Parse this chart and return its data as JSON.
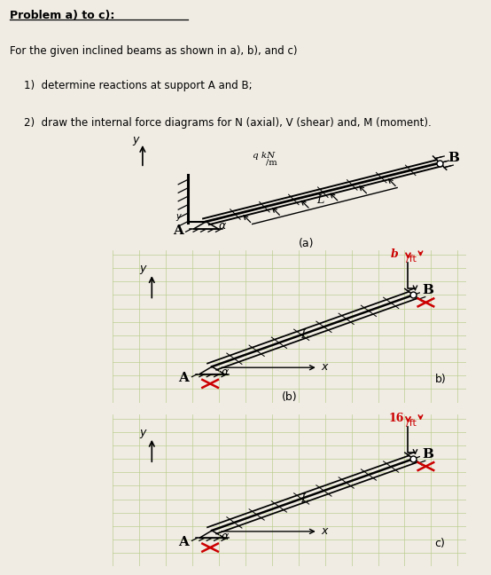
{
  "title_line1": "Problem a) to c):",
  "title_line2": "For the given inclined beams as shown in a), b), and c)",
  "item1": "1)  determine reactions at support A and B;",
  "item2": "2)  draw the internal force diagrams for N (axial), V (shear) and, M (moment).",
  "bg_color": "#f0ece4",
  "grid_color": "#b8cc88",
  "grid_bg": "#d8e8a8",
  "beam_color": "#111111",
  "load_color": "#cc0000",
  "text_color": "#111111",
  "label_a": "(a)",
  "label_b": "(b)",
  "load_b_text": "b",
  "load_c_text": "16",
  "load_unit": "/ft",
  "load_unit_a": "kN/m"
}
